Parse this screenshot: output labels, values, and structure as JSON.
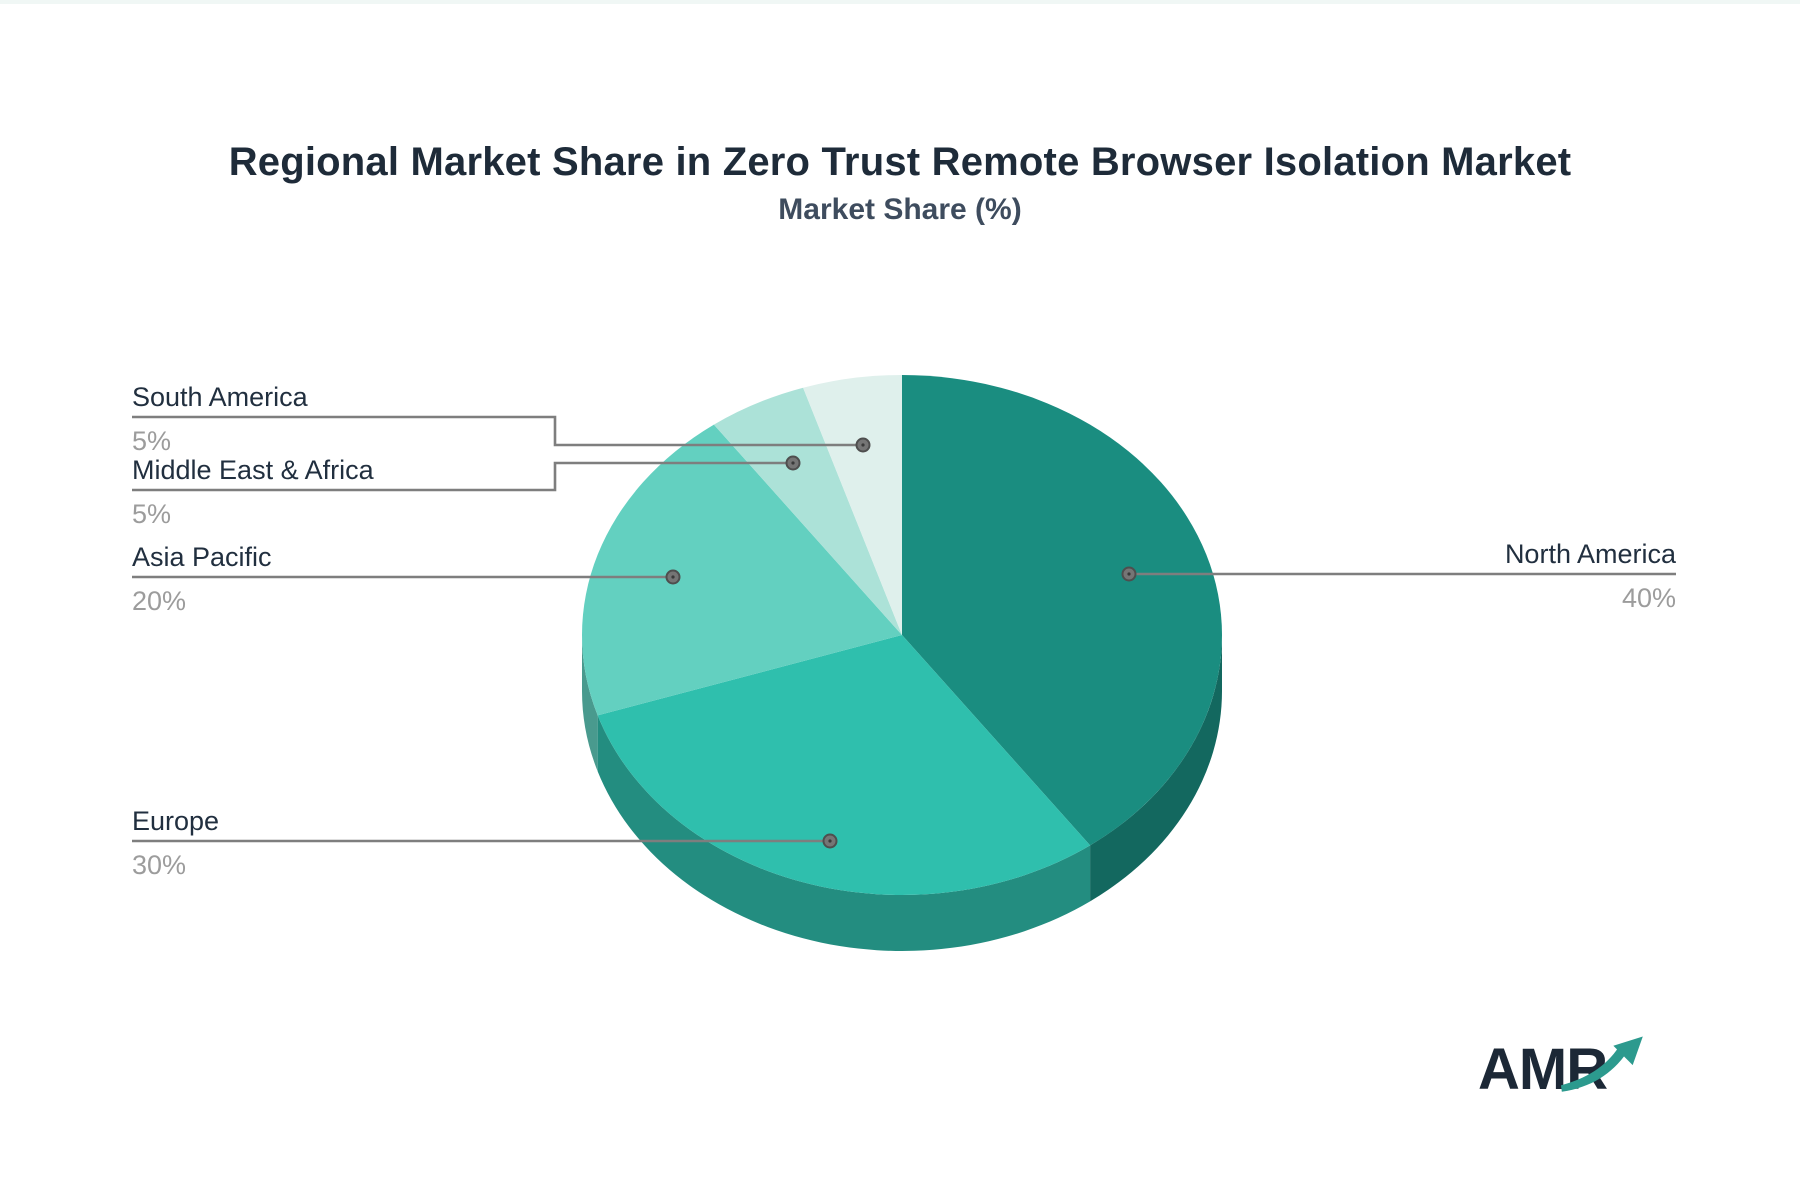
{
  "chart": {
    "title": "Regional Market Share in Zero Trust Remote Browser Isolation Market",
    "subtitle": "Market Share (%)"
  },
  "chart_data": {
    "type": "pie",
    "style": "3d",
    "title": "Regional Market Share in Zero Trust Remote Browser Isolation Market",
    "subtitle": "Market Share (%)",
    "unit": "%",
    "start_position": "12-o-clock",
    "direction": "clockwise",
    "background": "#ffffff",
    "legend": "none",
    "slices": [
      {
        "name": "North America",
        "value": 40,
        "pct_label": "40%",
        "color": "#1A8D80",
        "label_side": "right"
      },
      {
        "name": "Europe",
        "value": 30,
        "pct_label": "30%",
        "color": "#2FBFAD",
        "label_side": "left"
      },
      {
        "name": "Asia Pacific",
        "value": 20,
        "pct_label": "20%",
        "color": "#63D0C0",
        "label_side": "left"
      },
      {
        "name": "Middle East & Africa",
        "value": 5,
        "pct_label": "5%",
        "color": "#ACE2D8",
        "label_side": "left"
      },
      {
        "name": "South America",
        "value": 5,
        "pct_label": "5%",
        "color": "#DFF0EC",
        "label_side": "left"
      }
    ],
    "connector_color": "#7E7E7E",
    "label_name_color": "#212F3F",
    "label_pct_color": "#9C9C9C"
  },
  "logo": {
    "text": "AMR",
    "arrow_color": "#2C9A8E"
  }
}
